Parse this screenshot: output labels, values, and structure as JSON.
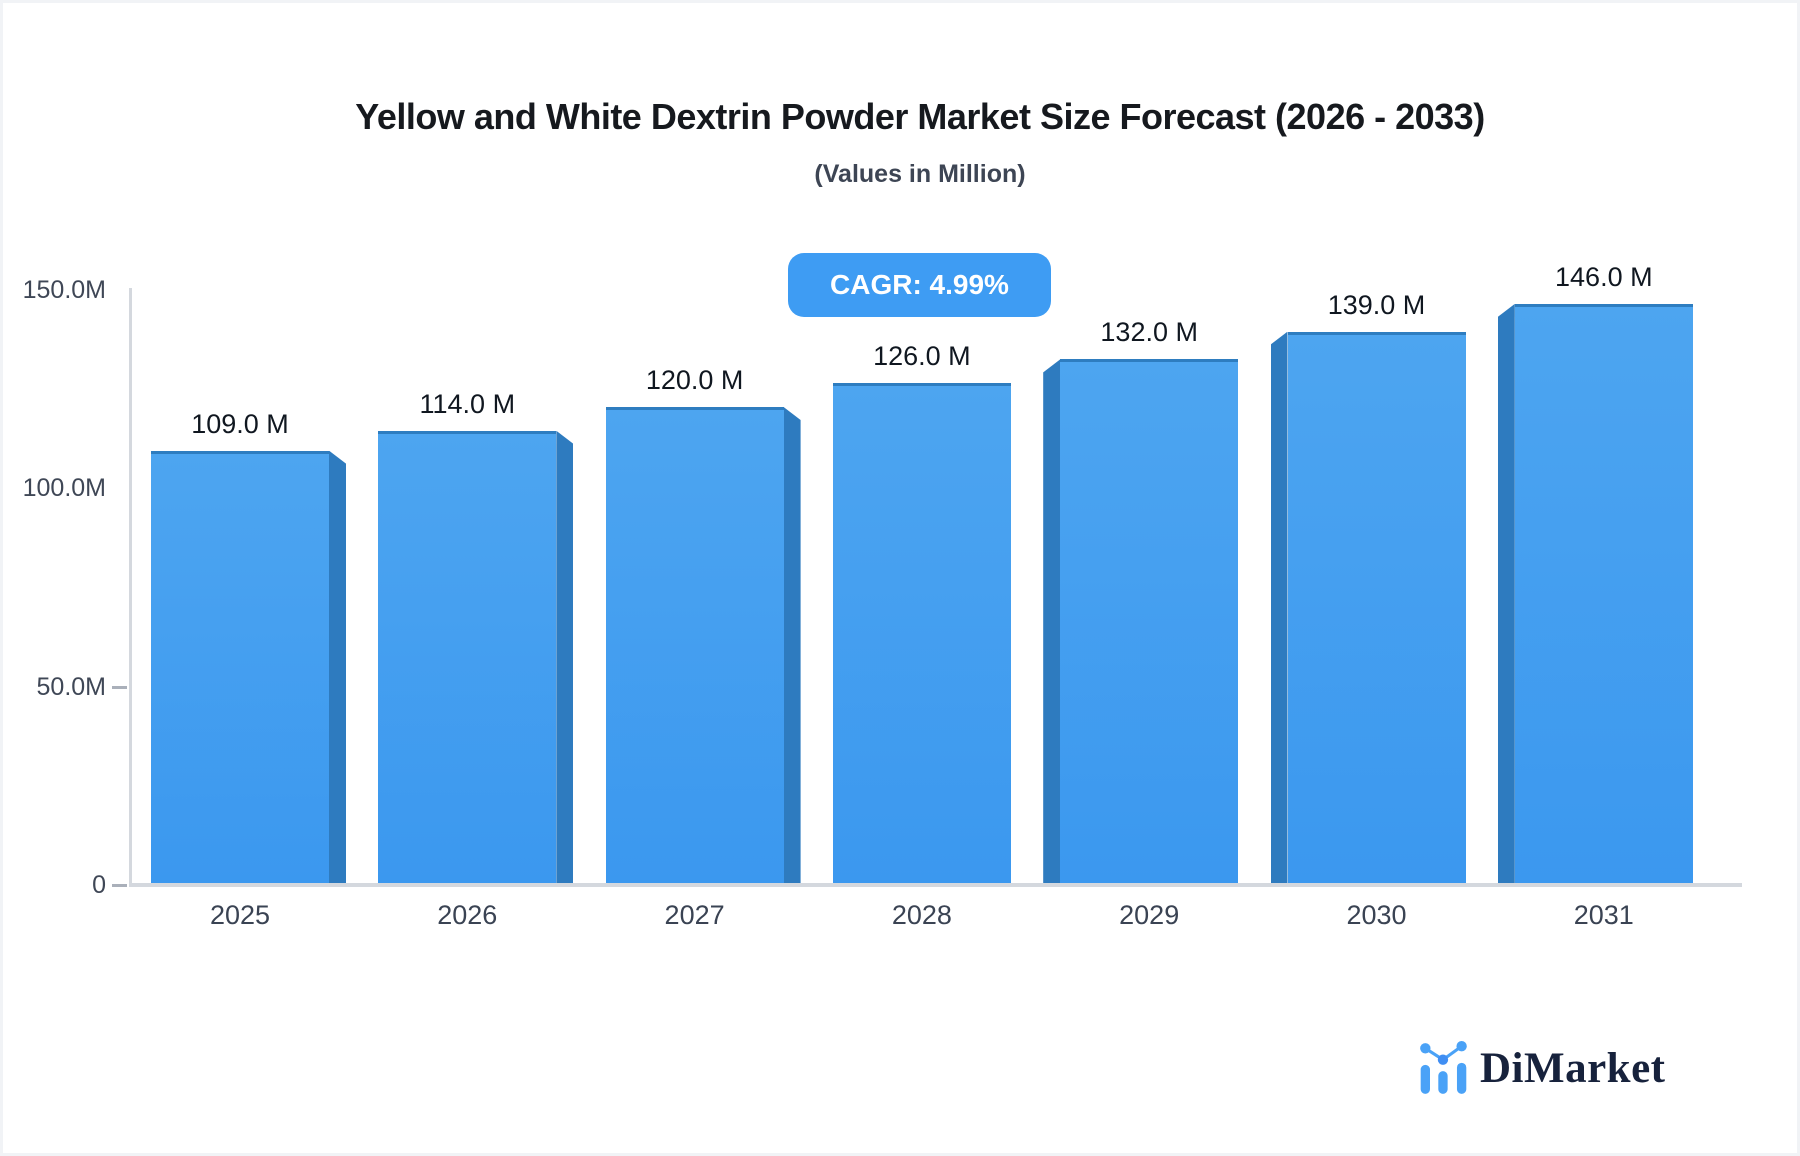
{
  "header": {
    "title": "Yellow and White Dextrin Powder Market Size Forecast (2026 - 2033)",
    "subtitle": "(Values in Million)"
  },
  "badge": {
    "label": "CAGR: 4.99%"
  },
  "chart_data": {
    "type": "bar",
    "title": "Yellow and White Dextrin Powder Market Size Forecast (2026 - 2033)",
    "subtitle": "(Values in Million)",
    "unit": "Million",
    "cagr": "4.99%",
    "categories": [
      "2025",
      "2026",
      "2027",
      "2028",
      "2029",
      "2030",
      "2031"
    ],
    "values": [
      109,
      114,
      120,
      126,
      132,
      139,
      146
    ],
    "value_labels": [
      "109.0 M",
      "114.0 M",
      "120.0 M",
      "126.0 M",
      "132.0 M",
      "139.0 M",
      "146.0 M"
    ],
    "ylim": [
      0,
      150
    ],
    "yticks": [
      {
        "label": "150.0M",
        "value": 150,
        "dash": false
      },
      {
        "label": "100.0M",
        "value": 100,
        "dash": false
      },
      {
        "label": "50.0M",
        "value": 50,
        "dash": true
      },
      {
        "label": "0",
        "value": 0,
        "dash": true
      }
    ],
    "grid": false,
    "legend_position": "none",
    "colors": {
      "bar_top": "#4da5f0",
      "bar_bottom": "#3b98ef",
      "bar_edge": "#2e7dc0",
      "bar_side": "#2e7bbf",
      "axis_line": "#d4d8de",
      "badge_bg": "#3e9cf3",
      "badge_text": "#ffffff",
      "title_text": "#16191e",
      "label_text": "#3a4353"
    }
  },
  "footer": {
    "logo_text": "DiMarket",
    "logo_icon": "mini-bar-line-chart-icon"
  }
}
